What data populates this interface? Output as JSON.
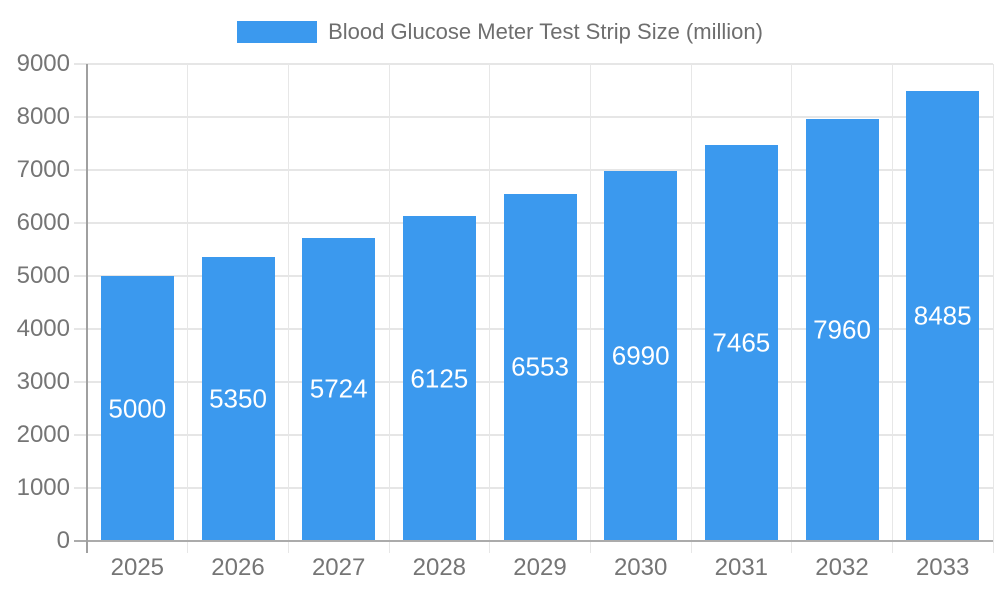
{
  "legend": {
    "position": "top",
    "items": [
      {
        "label": "Blood Glucose Meter Test Strip Size (million)",
        "color": "#3b99ee"
      }
    ]
  },
  "chart_data": {
    "type": "bar",
    "title": "Blood Glucose Meter Test Strip Size (million)",
    "series_name": "Blood Glucose Meter Test Strip Size (million)",
    "categories": [
      "2025",
      "2026",
      "2027",
      "2028",
      "2029",
      "2030",
      "2031",
      "2032",
      "2033"
    ],
    "values": [
      5000,
      5350,
      5724,
      6125,
      6553,
      6990,
      7465,
      7960,
      8485
    ],
    "data_labels": [
      "5000",
      "5350",
      "5724",
      "6125",
      "6553",
      "6990",
      "7465",
      "7960",
      "8485"
    ],
    "xlabel": "",
    "ylabel": "",
    "ylim": [
      0,
      9000
    ],
    "ytick_interval": 1000,
    "yticks": [
      0,
      1000,
      2000,
      3000,
      4000,
      5000,
      6000,
      7000,
      8000,
      9000
    ],
    "grid": true,
    "legend_position": "top",
    "bar_color": "#3b99ee",
    "value_label_color": "#ffffff"
  },
  "colors": {
    "bar": "#3b99ee",
    "axis_line_y": "#a0a0a0",
    "axis_line_x": "#ababab",
    "grid_line": "#e6e6e6",
    "axis_text": "#757575",
    "legend_text": "#6e6e6e",
    "value_text": "#ffffff",
    "background": "#ffffff"
  }
}
